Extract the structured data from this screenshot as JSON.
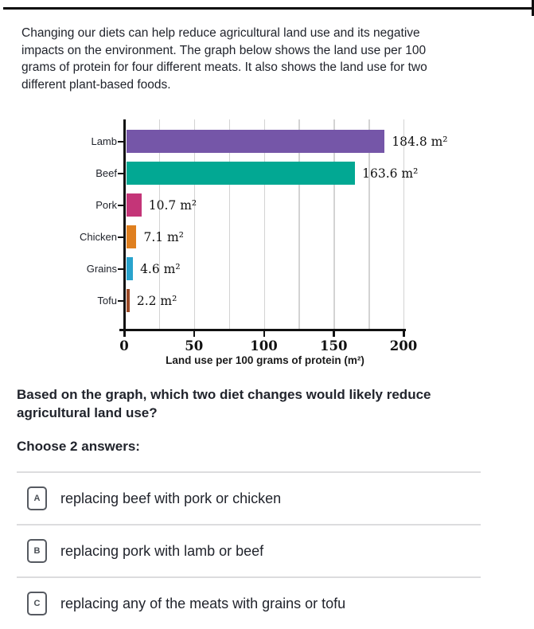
{
  "page": {
    "paragraph": "Changing our diets can help reduce agricultural land use and its negative\nimpacts on the environment. The graph below shows the land use per 100\ngrams of protein for four different meats. It also shows the land use for two\ndifferent plant-based foods.",
    "question": "Based on the graph, which two diet changes would likely reduce\nagricultural land use?",
    "choose_label": "Choose 2 answers:"
  },
  "chart_data": {
    "type": "bar",
    "orientation": "horizontal",
    "categories": [
      "Lamb",
      "Beef",
      "Pork",
      "Chicken",
      "Grains",
      "Tofu"
    ],
    "values": [
      184.8,
      163.6,
      10.7,
      7.1,
      4.6,
      2.2
    ],
    "value_labels": [
      "184.8 m²",
      "163.6 m²",
      "10.7 m²",
      "7.1 m²",
      "4.6 m²",
      "2.2 m²"
    ],
    "bar_colors": [
      "#7556a8",
      "#02a893",
      "#c43578",
      "#df7f1f",
      "#29a3cd",
      "#9c4a26"
    ],
    "title": "",
    "xlabel": "Land use per 100 grams of protein (m²)",
    "ylabel": "",
    "xlim": [
      0,
      200
    ],
    "xticks": [
      0,
      50,
      100,
      150,
      200
    ],
    "gridline_step": 25,
    "grid": "vertical-only",
    "legend": "none"
  },
  "options": [
    {
      "letter": "A",
      "text": "replacing beef with pork or chicken"
    },
    {
      "letter": "B",
      "text": "replacing pork with lamb or beef"
    },
    {
      "letter": "C",
      "text": "replacing any of the meats with grains or tofu"
    }
  ],
  "colors": {
    "text": "#21242c",
    "axis": "#111111",
    "gridline": "#d3d3d3",
    "divider": "#dcdcde",
    "frame": "#0c0c0c"
  }
}
